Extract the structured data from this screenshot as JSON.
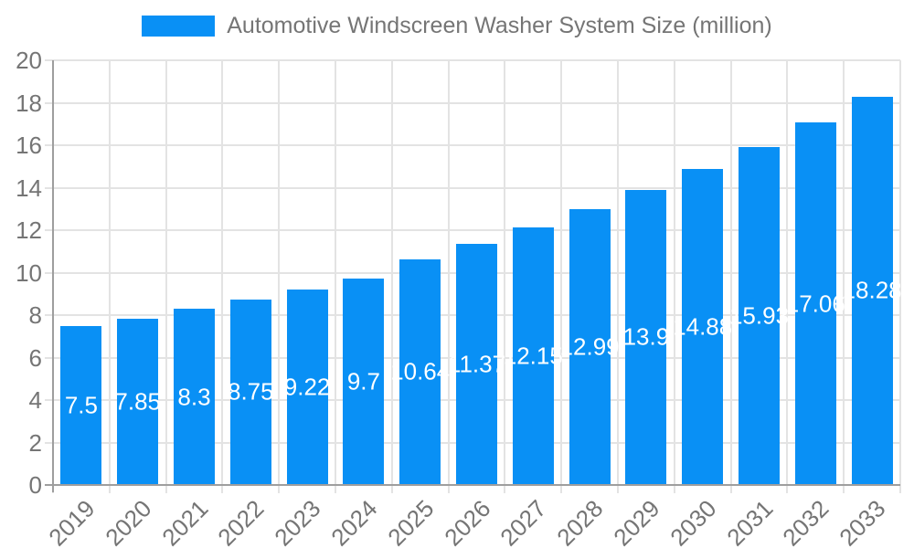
{
  "chart_data": {
    "type": "bar",
    "title": "Automotive Windscreen Washer System Size (million)",
    "categories": [
      "2019",
      "2020",
      "2021",
      "2022",
      "2023",
      "2024",
      "2025",
      "2026",
      "2027",
      "2028",
      "2029",
      "2030",
      "2031",
      "2032",
      "2033"
    ],
    "values": [
      7.5,
      7.85,
      8.3,
      8.75,
      9.22,
      9.7,
      10.64,
      11.37,
      12.15,
      12.99,
      13.9,
      14.88,
      15.93,
      17.06,
      18.28
    ],
    "data_labels": [
      "7.5",
      "7.85",
      "8.3",
      "8.75",
      "9.22",
      "9.7",
      "10.64",
      "11.37",
      "12.15",
      "12.99",
      "13.9",
      "14.88",
      "15.93",
      "17.06",
      "18.28"
    ],
    "xlabel": "",
    "ylabel": "",
    "ylim": [
      0,
      20
    ],
    "yticks": [
      0,
      2,
      4,
      6,
      8,
      10,
      12,
      14,
      16,
      18,
      20
    ],
    "grid": true,
    "legend_position": "top",
    "x_label_rotation_deg": -45,
    "data_labels_visible": true,
    "colors": {
      "bar": "#0990f5",
      "axis_line": "#9e9e9e",
      "gridline": "#e3e3e3",
      "tick_text": "#757575",
      "legend_text": "#757575",
      "data_label": "#ffffff",
      "background": "#ffffff"
    }
  }
}
